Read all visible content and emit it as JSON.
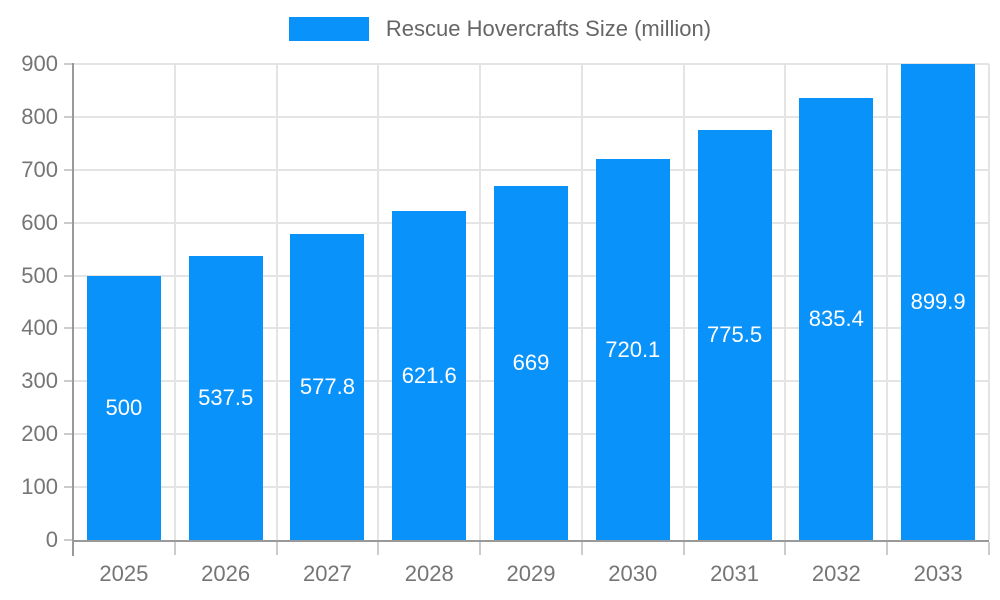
{
  "chart_data": {
    "type": "bar",
    "title": "Rescue Hovercrafts Size (million)",
    "xlabel": "",
    "ylabel": "",
    "categories": [
      "2025",
      "2026",
      "2027",
      "2028",
      "2029",
      "2030",
      "2031",
      "2032",
      "2033"
    ],
    "values": [
      500,
      537.5,
      577.8,
      621.6,
      669,
      720.1,
      775.5,
      835.4,
      899.9
    ],
    "ylim": [
      0,
      900
    ],
    "yticks": [
      0,
      100,
      200,
      300,
      400,
      500,
      600,
      700,
      800,
      900
    ],
    "grid": true,
    "legend_position": "top-center",
    "value_labels_position": "inside-center",
    "colors": {
      "bar": "#0992fa",
      "grid": "#e4e4e4",
      "axis": "#999999",
      "tick": "#cccccc",
      "axis_label": "#757575",
      "legend_text": "#666666",
      "value_label": "#ffffff",
      "background": "#ffffff"
    }
  }
}
